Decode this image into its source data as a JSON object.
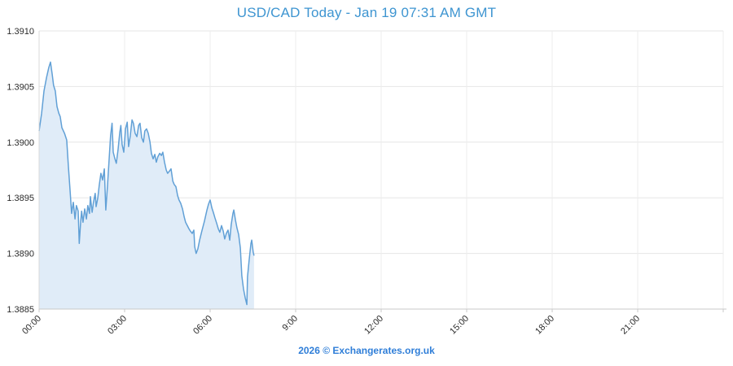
{
  "page": {
    "title": "USD/CAD Today - Jan 19 07:31 AM GMT",
    "footer": "2026 © Exchangerates.org.uk"
  },
  "colors": {
    "title_text": "#3e95d1",
    "footer_text": "#2f7ed8",
    "line": "#61a0d6",
    "area_fill": "#e0ecf8",
    "grid_horizontal": "#e6e6e6",
    "grid_vertical": "#ededed",
    "axis_bottom": "#c9c9c9",
    "axis_left": "#d9d9d9",
    "tick_mark": "#c9c9c9",
    "axis_label_text": "#2b2b2b"
  },
  "chart_data": {
    "type": "area",
    "title": "USD/CAD Today - Jan 19 07:31 AM GMT",
    "xlabel": "",
    "ylabel": "",
    "x_unit": "hour_of_day_GMT",
    "xlim": [
      0,
      24
    ],
    "ylim": [
      1.3885,
      1.391
    ],
    "grid": true,
    "legend": false,
    "y_ticks": [
      "1.3910",
      "1.3905",
      "1.3900",
      "1.3895",
      "1.3890",
      "1.3885"
    ],
    "y_tick_values": [
      1.391,
      1.3905,
      1.39,
      1.3895,
      1.389,
      1.3885
    ],
    "x_ticks": [
      {
        "h": 0,
        "label": "00:00"
      },
      {
        "h": 3,
        "label": "03:00"
      },
      {
        "h": 6,
        "label": "06:00"
      },
      {
        "h": 9,
        "label": "9:00"
      },
      {
        "h": 12,
        "label": "12:00"
      },
      {
        "h": 15,
        "label": "15:00"
      },
      {
        "h": 18,
        "label": "18:00"
      },
      {
        "h": 21,
        "label": "21:00"
      }
    ],
    "series": [
      {
        "name": "USD/CAD",
        "points": [
          [
            0,
            1.3901
          ],
          [
            0.09,
            1.39026
          ],
          [
            0.17,
            1.39046
          ],
          [
            0.26,
            1.39058
          ],
          [
            0.34,
            1.39067
          ],
          [
            0.4,
            1.39072
          ],
          [
            0.46,
            1.39061
          ],
          [
            0.51,
            1.39051
          ],
          [
            0.57,
            1.39046
          ],
          [
            0.63,
            1.39032
          ],
          [
            0.69,
            1.39026
          ],
          [
            0.74,
            1.39023
          ],
          [
            0.8,
            1.39013
          ],
          [
            0.89,
            1.39008
          ],
          [
            0.97,
            1.39002
          ],
          [
            1.03,
            1.38978
          ],
          [
            1.09,
            1.38955
          ],
          [
            1.14,
            1.38936
          ],
          [
            1.2,
            1.38946
          ],
          [
            1.26,
            1.38931
          ],
          [
            1.31,
            1.38943
          ],
          [
            1.37,
            1.38938
          ],
          [
            1.41,
            1.38909
          ],
          [
            1.46,
            1.38929
          ],
          [
            1.49,
            1.38938
          ],
          [
            1.54,
            1.38928
          ],
          [
            1.6,
            1.3894
          ],
          [
            1.66,
            1.38931
          ],
          [
            1.71,
            1.38943
          ],
          [
            1.77,
            1.38936
          ],
          [
            1.8,
            1.38951
          ],
          [
            1.86,
            1.38937
          ],
          [
            1.91,
            1.38946
          ],
          [
            1.97,
            1.38954
          ],
          [
            2,
            1.38942
          ],
          [
            2.06,
            1.3895
          ],
          [
            2.11,
            1.38961
          ],
          [
            2.17,
            1.38972
          ],
          [
            2.23,
            1.38966
          ],
          [
            2.29,
            1.38976
          ],
          [
            2.34,
            1.38939
          ],
          [
            2.4,
            1.38961
          ],
          [
            2.46,
            1.38986
          ],
          [
            2.51,
            1.39006
          ],
          [
            2.56,
            1.39017
          ],
          [
            2.6,
            1.38991
          ],
          [
            2.66,
            1.38985
          ],
          [
            2.71,
            1.38981
          ],
          [
            2.77,
            1.38993
          ],
          [
            2.83,
            1.39009
          ],
          [
            2.87,
            1.39015
          ],
          [
            2.91,
            1.38998
          ],
          [
            2.97,
            1.38991
          ],
          [
            3.03,
            1.39012
          ],
          [
            3.09,
            1.39018
          ],
          [
            3.14,
            1.38996
          ],
          [
            3.2,
            1.39006
          ],
          [
            3.26,
            1.3902
          ],
          [
            3.31,
            1.39017
          ],
          [
            3.37,
            1.39008
          ],
          [
            3.43,
            1.39005
          ],
          [
            3.49,
            1.39015
          ],
          [
            3.54,
            1.39017
          ],
          [
            3.6,
            1.39004
          ],
          [
            3.66,
            1.39
          ],
          [
            3.71,
            1.3901
          ],
          [
            3.77,
            1.39012
          ],
          [
            3.83,
            1.39008
          ],
          [
            3.89,
            1.39
          ],
          [
            3.94,
            1.3899
          ],
          [
            4,
            1.38985
          ],
          [
            4.06,
            1.38989
          ],
          [
            4.11,
            1.38982
          ],
          [
            4.17,
            1.38987
          ],
          [
            4.23,
            1.3899
          ],
          [
            4.29,
            1.38988
          ],
          [
            4.34,
            1.38991
          ],
          [
            4.4,
            1.38982
          ],
          [
            4.46,
            1.38975
          ],
          [
            4.51,
            1.38972
          ],
          [
            4.57,
            1.38974
          ],
          [
            4.63,
            1.38976
          ],
          [
            4.69,
            1.38965
          ],
          [
            4.74,
            1.38962
          ],
          [
            4.8,
            1.3896
          ],
          [
            4.86,
            1.38952
          ],
          [
            4.91,
            1.38948
          ],
          [
            4.97,
            1.38945
          ],
          [
            5.03,
            1.3894
          ],
          [
            5.09,
            1.38933
          ],
          [
            5.14,
            1.38928
          ],
          [
            5.2,
            1.38925
          ],
          [
            5.26,
            1.38922
          ],
          [
            5.31,
            1.3892
          ],
          [
            5.37,
            1.38918
          ],
          [
            5.43,
            1.38921
          ],
          [
            5.46,
            1.38906
          ],
          [
            5.51,
            1.389
          ],
          [
            5.57,
            1.38904
          ],
          [
            5.63,
            1.38912
          ],
          [
            5.71,
            1.3892
          ],
          [
            5.8,
            1.38929
          ],
          [
            5.89,
            1.38939
          ],
          [
            5.94,
            1.38944
          ],
          [
            6,
            1.38948
          ],
          [
            6.06,
            1.38941
          ],
          [
            6.11,
            1.38937
          ],
          [
            6.17,
            1.38932
          ],
          [
            6.23,
            1.38927
          ],
          [
            6.29,
            1.38922
          ],
          [
            6.34,
            1.38919
          ],
          [
            6.4,
            1.38925
          ],
          [
            6.46,
            1.3892
          ],
          [
            6.51,
            1.38913
          ],
          [
            6.57,
            1.38918
          ],
          [
            6.63,
            1.38921
          ],
          [
            6.69,
            1.38912
          ],
          [
            6.74,
            1.38926
          ],
          [
            6.8,
            1.38936
          ],
          [
            6.83,
            1.38939
          ],
          [
            6.89,
            1.3893
          ],
          [
            6.94,
            1.38923
          ],
          [
            7,
            1.38917
          ],
          [
            7.06,
            1.38905
          ],
          [
            7.11,
            1.3888
          ],
          [
            7.17,
            1.38868
          ],
          [
            7.23,
            1.3886
          ],
          [
            7.29,
            1.38854
          ],
          [
            7.31,
            1.38879
          ],
          [
            7.37,
            1.38894
          ],
          [
            7.43,
            1.38909
          ],
          [
            7.46,
            1.38912
          ],
          [
            7.51,
            1.38901
          ],
          [
            7.54,
            1.38898
          ]
        ]
      }
    ]
  }
}
